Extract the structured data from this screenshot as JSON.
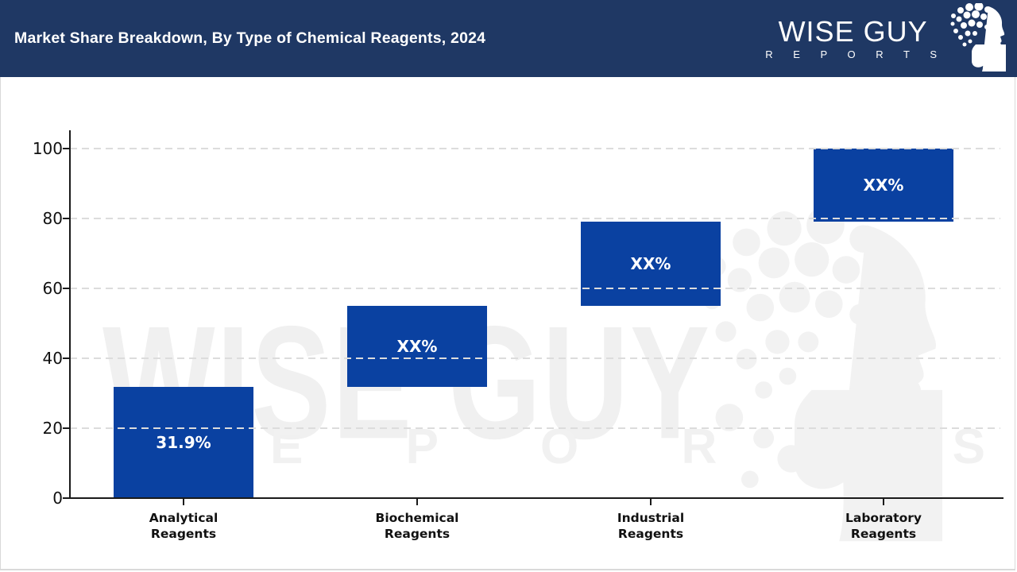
{
  "header": {
    "title": "Market Share Breakdown, By Type of Chemical Reagents, 2024",
    "logo_line1": "WISE GUY",
    "logo_line2": "R E P O R T S"
  },
  "watermark": {
    "line1": "WISE GUY",
    "line2": "R E P O R T S"
  },
  "colors": {
    "header_bg": "#1f3864",
    "bar_fill": "#0a41a1",
    "bar_label_text": "#ffffff",
    "gridline": "#dcdcdc",
    "axis": "#1a1a1a",
    "watermark": "#f0f0f0"
  },
  "chart_data": {
    "type": "bar",
    "subtype": "waterfall",
    "title": "Market Share Breakdown, By Type of Chemical Reagents, 2024",
    "xlabel": "",
    "ylabel": "",
    "ylim": [
      0,
      105
    ],
    "yticks": [
      0,
      20,
      40,
      60,
      80,
      100
    ],
    "grid": "dashed horizontal",
    "legend": "none",
    "categories": [
      "Analytical Reagents",
      "Biochemical Reagents",
      "Industrial Reagents",
      "Laboratory Reagents"
    ],
    "segments": [
      {
        "category_lines": [
          "Analytical",
          "Reagents"
        ],
        "start": 0,
        "end": 31.9,
        "label": "31.9%"
      },
      {
        "category_lines": [
          "Biochemical",
          "Reagents"
        ],
        "start": 31.9,
        "end": 55,
        "label": "XX%"
      },
      {
        "category_lines": [
          "Industrial",
          "Reagents"
        ],
        "start": 55,
        "end": 79,
        "label": "XX%"
      },
      {
        "category_lines": [
          "Laboratory",
          "Reagents"
        ],
        "start": 79,
        "end": 100,
        "label": "XX%"
      }
    ]
  }
}
